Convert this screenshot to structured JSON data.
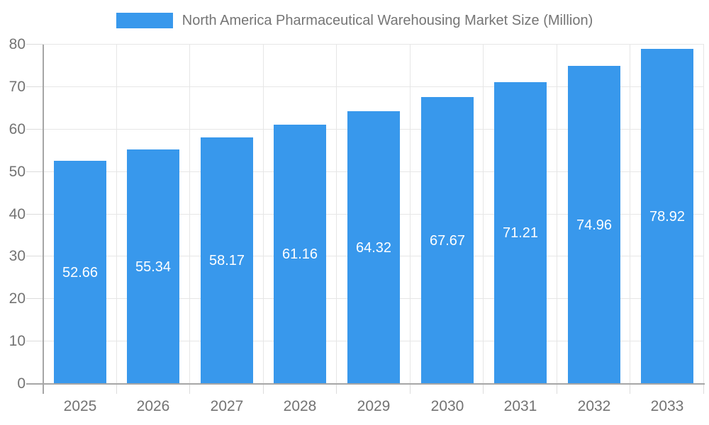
{
  "legend": {
    "label": "North America Pharmaceutical Warehousing Market Size (Million)"
  },
  "chart_data": {
    "type": "bar",
    "title": "North America Pharmaceutical Warehousing Market Size (Million)",
    "categories": [
      "2025",
      "2026",
      "2027",
      "2028",
      "2029",
      "2030",
      "2031",
      "2032",
      "2033"
    ],
    "values": [
      52.66,
      55.34,
      58.17,
      61.16,
      64.32,
      67.67,
      71.21,
      74.96,
      78.92
    ],
    "value_labels": [
      "52.66",
      "55.34",
      "58.17",
      "61.16",
      "64.32",
      "67.67",
      "71.21",
      "74.96",
      "78.92"
    ],
    "xlabel": "",
    "ylabel": "",
    "ylim": [
      0,
      80
    ],
    "yticks": [
      0,
      10,
      20,
      30,
      40,
      50,
      60,
      70,
      80
    ],
    "grid": true,
    "legend_position": "top",
    "bar_color": "#3898ec",
    "bar_label_color": "#ffffff",
    "axis_text_color": "#737373",
    "title_color": "#757575",
    "grid_color": "#e6e6e6",
    "tick_color": "#dcdcdc",
    "axis_line_color": "#a6a6a6"
  }
}
